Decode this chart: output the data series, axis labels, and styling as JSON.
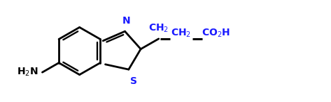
{
  "background_color": "#ffffff",
  "line_color": "#000000",
  "text_color": "#000000",
  "chain_text_color": "#1a1aff",
  "atom_label_color": "#1a1aff",
  "line_width": 2.0,
  "figsize": [
    4.73,
    1.47
  ],
  "dpi": 100,
  "xlim": [
    0.0,
    10.0
  ],
  "ylim": [
    0.0,
    3.2
  ]
}
